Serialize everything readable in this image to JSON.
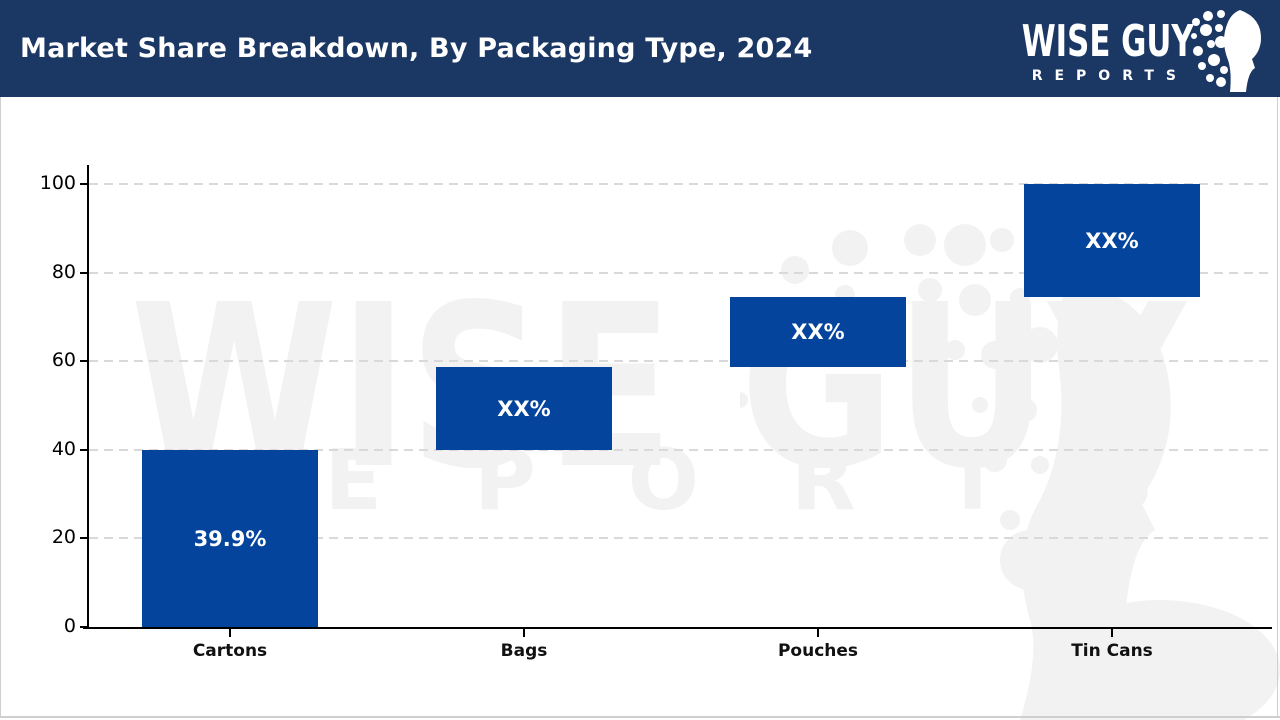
{
  "header": {
    "title": "Market Share Breakdown, By Packaging Type, 2024",
    "logo": {
      "wordmark": "WISE GUY",
      "subtext": "REPORTS"
    },
    "bg_color": "#1b3764"
  },
  "watermark": {
    "wordmark": "WISE GUY",
    "subtext": "REPORTS"
  },
  "chart_data": {
    "type": "bar",
    "variant": "waterfall",
    "title": "Market Share Breakdown, By Packaging Type, 2024",
    "categories": [
      "Cartons",
      "Bags",
      "Pouches",
      "Tin Cans"
    ],
    "segments": [
      {
        "category": "Cartons",
        "start": 0,
        "end": 39.9,
        "value": 39.9,
        "label": "39.9%"
      },
      {
        "category": "Bags",
        "start": 40.0,
        "end": 58.7,
        "value": 18.7,
        "label": "XX%"
      },
      {
        "category": "Pouches",
        "start": 58.7,
        "end": 74.5,
        "value": 15.8,
        "label": "XX%"
      },
      {
        "category": "Tin Cans",
        "start": 74.5,
        "end": 100,
        "value": 25.5,
        "label": "XX%"
      }
    ],
    "yticks": [
      0,
      20,
      40,
      60,
      80,
      100
    ],
    "ylim": [
      0,
      104
    ],
    "xlabel": "",
    "ylabel": "",
    "grid": "horizontal-dashed",
    "legend": "none",
    "bar_color": "#04449c",
    "bar_label_color": "#ffffff",
    "axis_color": "#000000",
    "gridline_color": "#d9d9d9"
  }
}
